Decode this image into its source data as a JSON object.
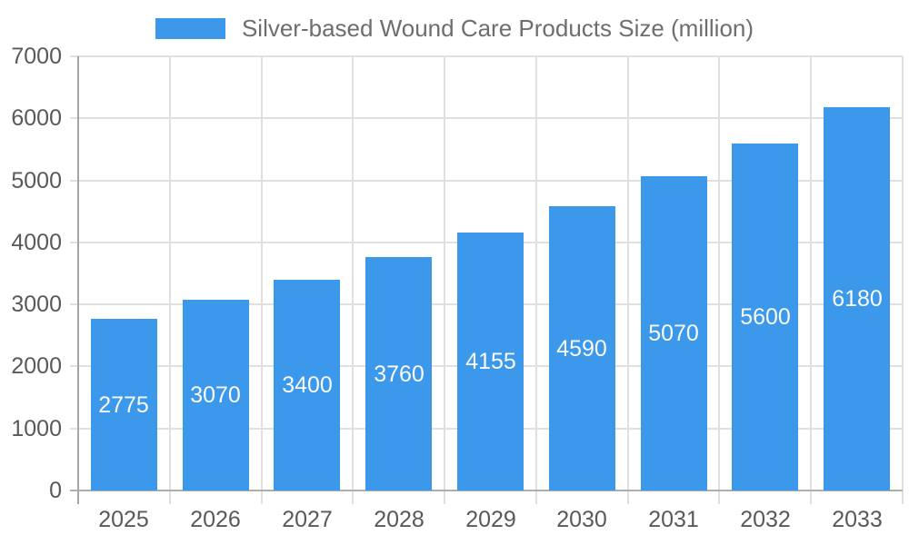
{
  "chart_data": {
    "type": "bar",
    "title": "",
    "legend_position": "top",
    "grid": true,
    "categories": [
      "2025",
      "2026",
      "2027",
      "2028",
      "2029",
      "2030",
      "2031",
      "2032",
      "2033"
    ],
    "series": [
      {
        "name": "Silver-based Wound Care Products Size (million)",
        "values": [
          2775,
          3070,
          3400,
          3760,
          4155,
          4590,
          5070,
          5600,
          6180
        ]
      }
    ],
    "xlabel": "",
    "ylabel": "",
    "ylim": [
      0,
      7000
    ],
    "yticks": [
      0,
      1000,
      2000,
      3000,
      4000,
      5000,
      6000,
      7000
    ],
    "bar_label_position": "inside-center",
    "colors": {
      "bar": "#3b98eb",
      "bar_label": "#fafafa",
      "axis_label": "#58595b",
      "legend_text": "#6e6e71",
      "grid_line": "#e0e0e0",
      "axis_line": "#a6a6a6",
      "background": "#ffffff"
    }
  }
}
